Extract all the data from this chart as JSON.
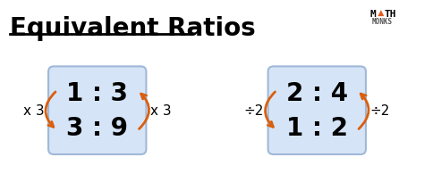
{
  "title": "Equivalent Ratios",
  "title_fontsize": 20,
  "bg_color": "#ffffff",
  "box_fill": "#d6e4f7",
  "box_edge": "#a0b8d8",
  "box1": {
    "top": "1 : 3",
    "bottom": "3 : 9"
  },
  "box2": {
    "top": "2 : 4",
    "bottom": "1 : 2"
  },
  "label1_left": "x 3",
  "label1_right": "x 3",
  "label2_left": "÷2",
  "label2_right": "÷2",
  "arrow_color": "#d95f0e",
  "ratio_fontsize": 20,
  "label_fontsize": 11
}
